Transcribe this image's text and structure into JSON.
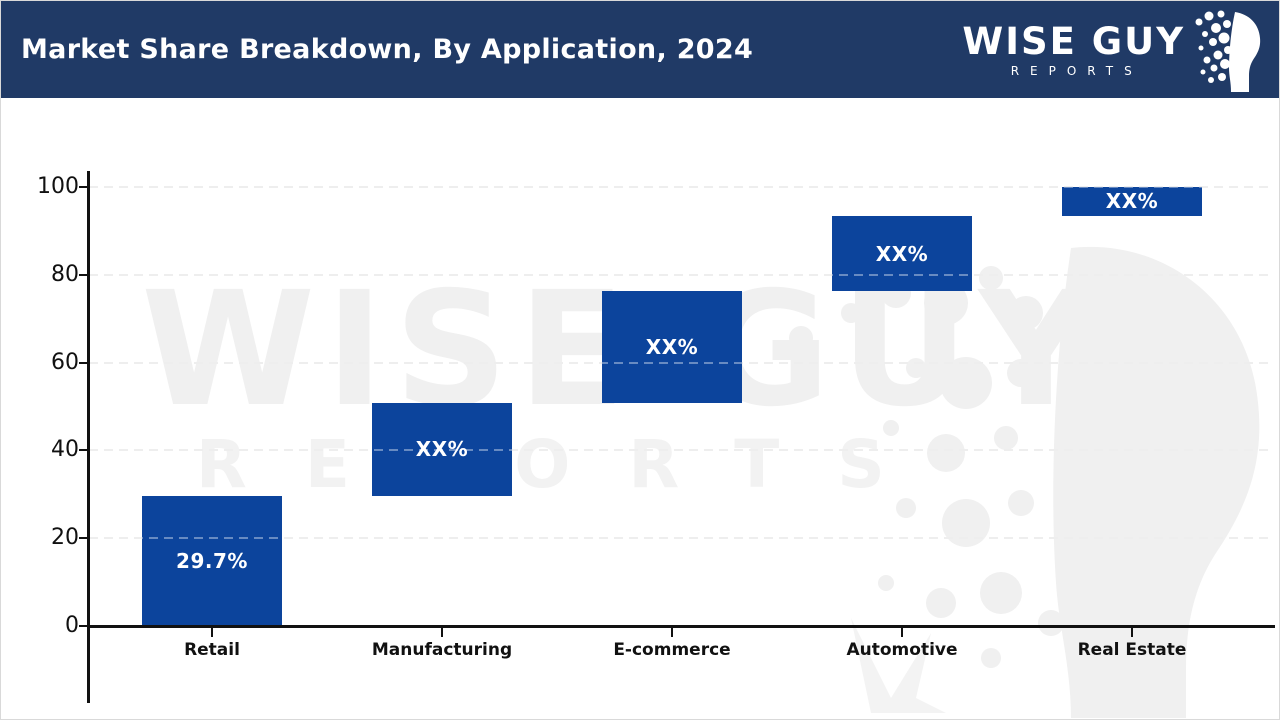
{
  "header": {
    "title": "Market Share Breakdown, By Application, 2024",
    "logo": {
      "line1": "WISE GUY",
      "line2": "REPORTS"
    }
  },
  "watermark": {
    "line1": "WISE GUY",
    "line2": "REPORTS"
  },
  "chart_data": {
    "type": "bar",
    "subtype": "floating-waterfall-bars",
    "title": "Market Share Breakdown, By Application, 2024",
    "categories": [
      "Retail",
      "Manufacturing",
      "E-commerce",
      "Automotive",
      "Real Estate"
    ],
    "segments": [
      {
        "category": "Retail",
        "start": 0,
        "end": 29.7,
        "value": 29.7,
        "label": "29.7%"
      },
      {
        "category": "Manufacturing",
        "start": 29.7,
        "end": 50.9,
        "value": 21.2,
        "label": "XX%"
      },
      {
        "category": "E-commerce",
        "start": 50.9,
        "end": 76.3,
        "value": 25.4,
        "label": "XX%"
      },
      {
        "category": "Automotive",
        "start": 76.3,
        "end": 93.4,
        "value": 17.1,
        "label": "XX%"
      },
      {
        "category": "Real Estate",
        "start": 93.4,
        "end": 100,
        "value": 6.6,
        "label": "XX%"
      }
    ],
    "yticks": [
      0,
      20,
      40,
      60,
      80,
      100
    ],
    "ylim": [
      0,
      103
    ],
    "grid": true,
    "grid_style": "dashed",
    "legend": false,
    "bar_color": "#0c449c",
    "bar_label_color": "#ffffff",
    "axis_color": "#111111",
    "gridline_color": "#e3e3e3",
    "header_color": "#203a66"
  }
}
